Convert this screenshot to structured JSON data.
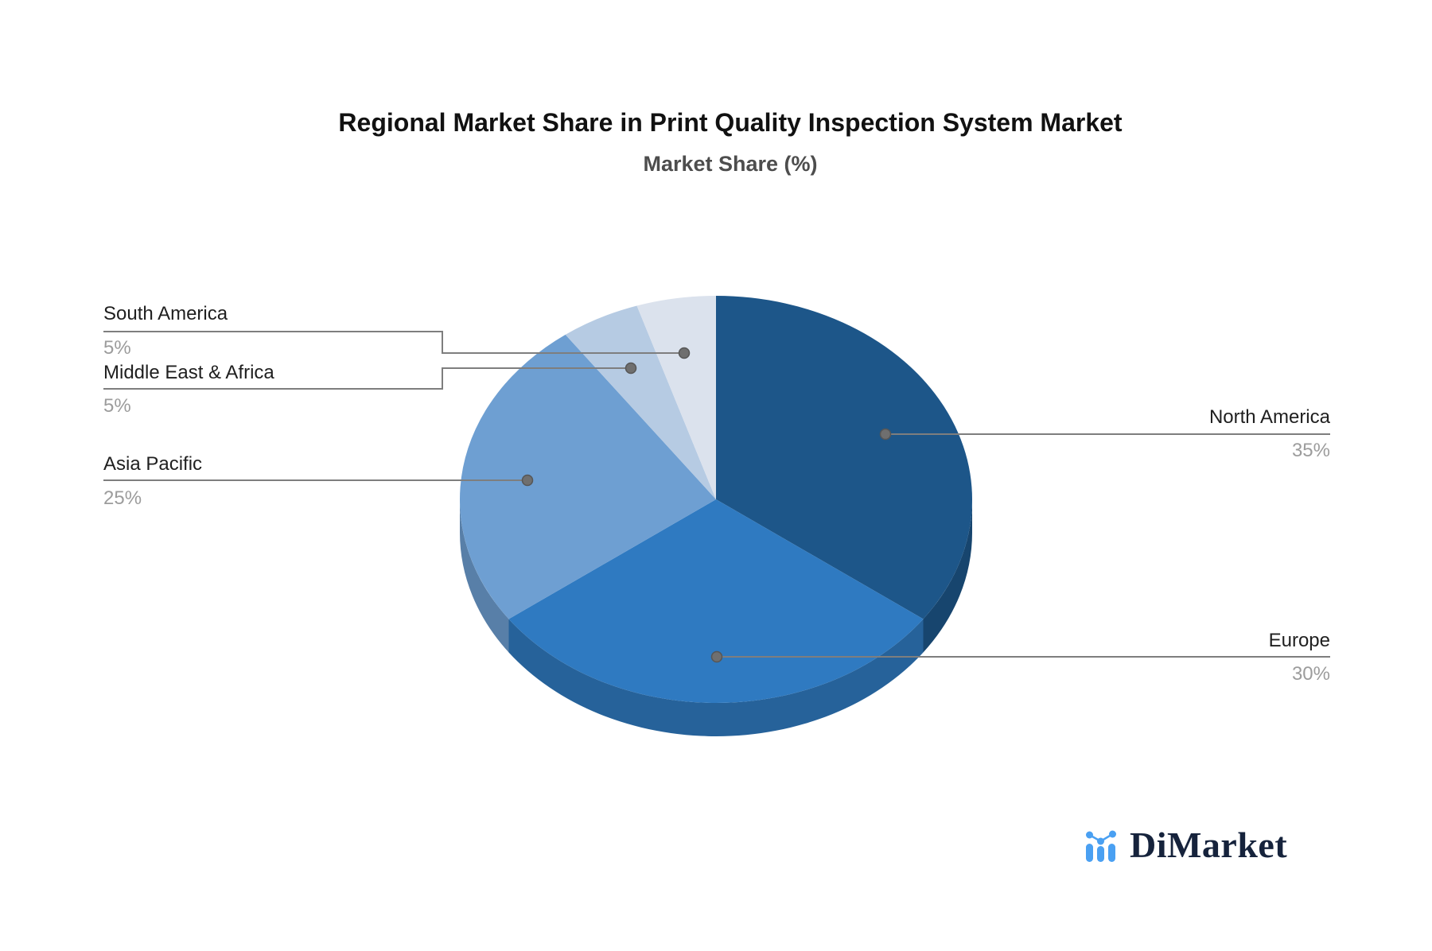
{
  "title": "Regional Market Share in Print Quality Inspection System Market",
  "subtitle": "Market Share (%)",
  "watermark": {
    "brand": "DiMarket",
    "icon": "bar-line-chart-icon",
    "brand_color": "#16233c",
    "icon_color": "#4aa0f2"
  },
  "chart_data": {
    "type": "pie",
    "is_3d": true,
    "title": "Regional Market Share in Print Quality Inspection System Market",
    "subtitle": "Market Share (%)",
    "unit": "%",
    "start_angle_deg": 0,
    "direction": "clockwise",
    "legend": "none",
    "slices": [
      {
        "name": "North America",
        "value": 35,
        "display": "35%",
        "color": "#1d5689"
      },
      {
        "name": "Europe",
        "value": 30,
        "display": "30%",
        "color": "#2f7ac1"
      },
      {
        "name": "Asia Pacific",
        "value": 25,
        "display": "25%",
        "color": "#6e9fd2"
      },
      {
        "name": "Middle East & Africa",
        "value": 5,
        "display": "5%",
        "color": "#b6cbe3"
      },
      {
        "name": "South America",
        "value": 5,
        "display": "5%",
        "color": "#dbe2ed"
      }
    ],
    "label_style": {
      "name_color": "#1f1f1f",
      "value_color": "#9c9c9c",
      "leader_color": "#7e7e7e",
      "dot_color": "#6f6f6f"
    }
  }
}
